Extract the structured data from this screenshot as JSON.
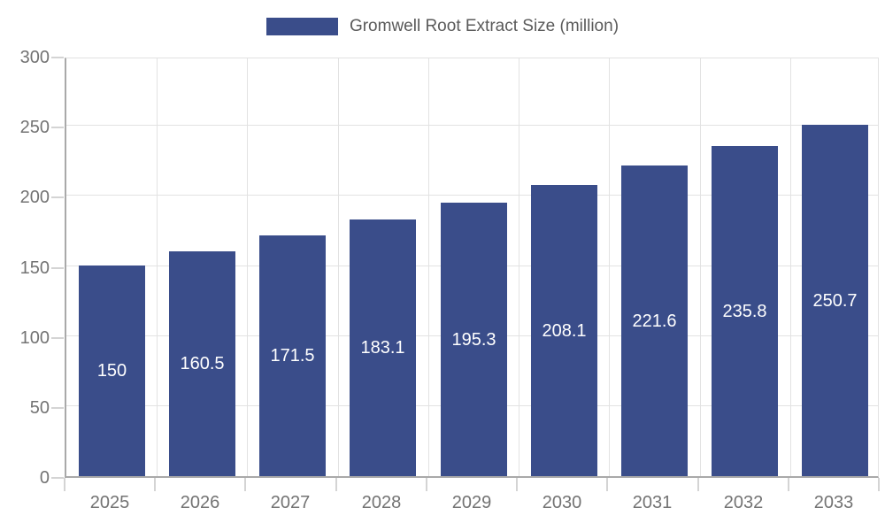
{
  "chart_data": {
    "type": "bar",
    "title": "",
    "legend_label": "Gromwell Root Extract Size (million)",
    "legend_position": "top-center",
    "categories": [
      "2025",
      "2026",
      "2027",
      "2028",
      "2029",
      "2030",
      "2031",
      "2032",
      "2033"
    ],
    "values": [
      150,
      160.5,
      171.5,
      183.1,
      195.3,
      208.1,
      221.6,
      235.8,
      250.7
    ],
    "value_labels": [
      "150",
      "160.5",
      "171.5",
      "183.1",
      "195.3",
      "208.1",
      "221.6",
      "235.8",
      "250.7"
    ],
    "xlabel": "",
    "ylabel": "",
    "ylim": [
      0,
      300
    ],
    "yticks": [
      0,
      50,
      100,
      150,
      200,
      250,
      300
    ],
    "grid": true,
    "colors": {
      "bar": "#3A4D8A",
      "value_label_text": "#ffffff",
      "axis_line": "#a9a9a9",
      "gridline": "#e2e2e2",
      "tick_mark": "#d4d4d4",
      "tick_label_text": "#737373",
      "legend_text": "#5a5a5a",
      "background": "#ffffff"
    }
  }
}
